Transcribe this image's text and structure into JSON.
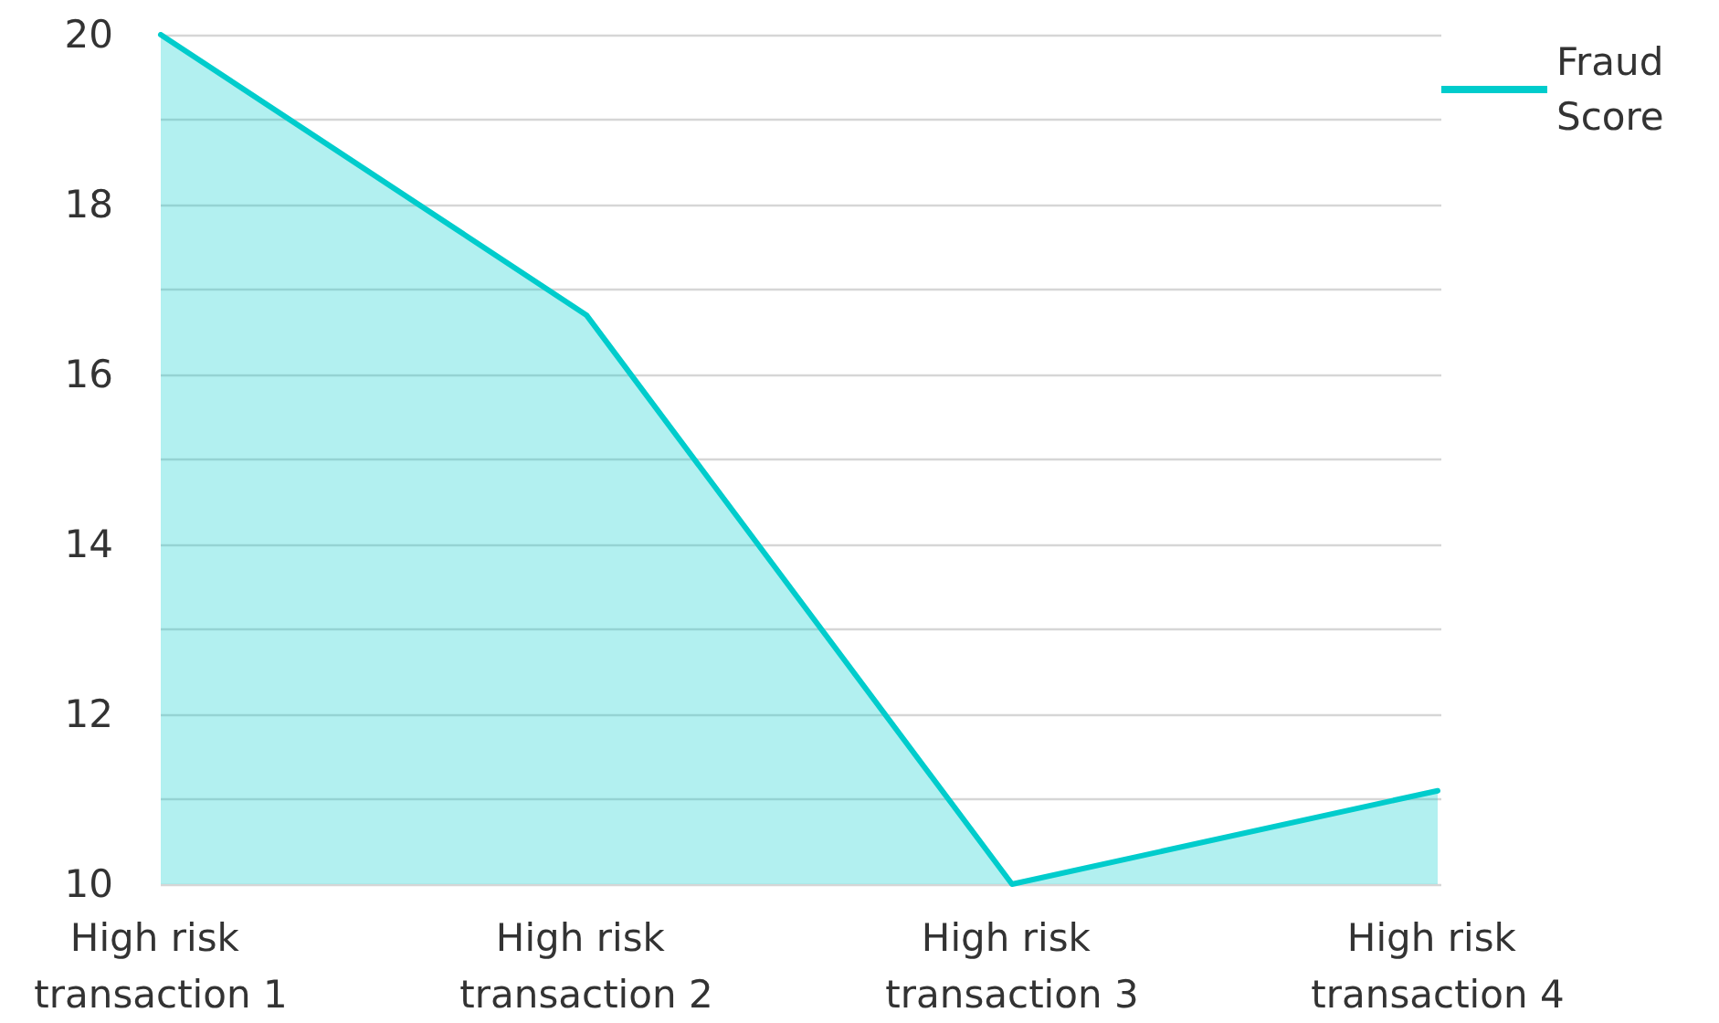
{
  "chart_data": {
    "type": "area",
    "categories": [
      "High risk transaction 1",
      "High risk transaction 2",
      "High risk transaction 3",
      "High risk transaction 4"
    ],
    "series": [
      {
        "name": "Fraud Score",
        "color": "#00cccc",
        "values": [
          20,
          16.7,
          10,
          11.1
        ]
      }
    ],
    "ylim": [
      10,
      20
    ],
    "yticks": [
      10,
      {
        "value": 11,
        "label": null
      },
      12,
      {
        "value": 13,
        "label": null
      },
      14,
      {
        "value": 15,
        "label": null
      },
      16,
      {
        "value": 17,
        "label": null
      },
      18,
      {
        "value": 19,
        "label": null
      },
      20
    ],
    "grid": "y",
    "legend": "top right",
    "marker": "none"
  }
}
